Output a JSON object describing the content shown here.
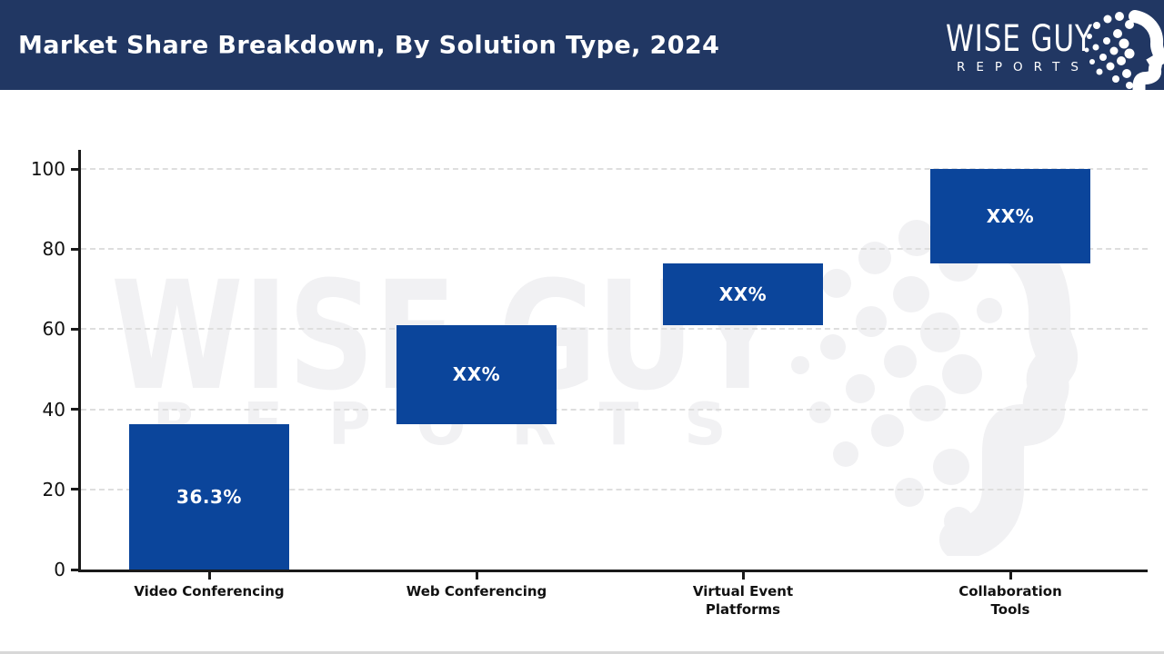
{
  "header": {
    "title": "Market Share Breakdown, By Solution Type, 2024",
    "brand": {
      "name": "WISE GUY",
      "sub": "REPORTS"
    }
  },
  "watermark": {
    "line1": "WISE GUY",
    "line2": "REPORTS"
  },
  "chart_data": {
    "type": "bar",
    "subtype": "waterfall",
    "title": "Market Share Breakdown, By Solution Type, 2024",
    "categories": [
      "Video Conferencing",
      "Web Conferencing",
      "Virtual Event\nPlatforms",
      "Collaboration\nTools"
    ],
    "bars": [
      {
        "category": "Video Conferencing",
        "start": 0,
        "end": 36.3,
        "label": "36.3%"
      },
      {
        "category": "Web Conferencing",
        "start": 36.3,
        "end": 61,
        "label": "XX%"
      },
      {
        "category": "Virtual Event Platforms",
        "start": 61,
        "end": 76.5,
        "label": "XX%"
      },
      {
        "category": "Collaboration Tools",
        "start": 76.5,
        "end": 100,
        "label": "XX%"
      }
    ],
    "y_ticks": [
      0,
      20,
      40,
      60,
      80,
      100
    ],
    "ylim": [
      0,
      100
    ],
    "grid": "horizontal-dashed",
    "legend": "none",
    "bar_color": "#0b459b",
    "bar_label_color": "#ffffff"
  },
  "colors": {
    "header_bg": "#213763",
    "bar": "#0b459b",
    "grid": "#dedede",
    "axis": "#1a1a1a",
    "watermark": "#f1f1f3",
    "bottom_line": "#d8d8d8"
  }
}
